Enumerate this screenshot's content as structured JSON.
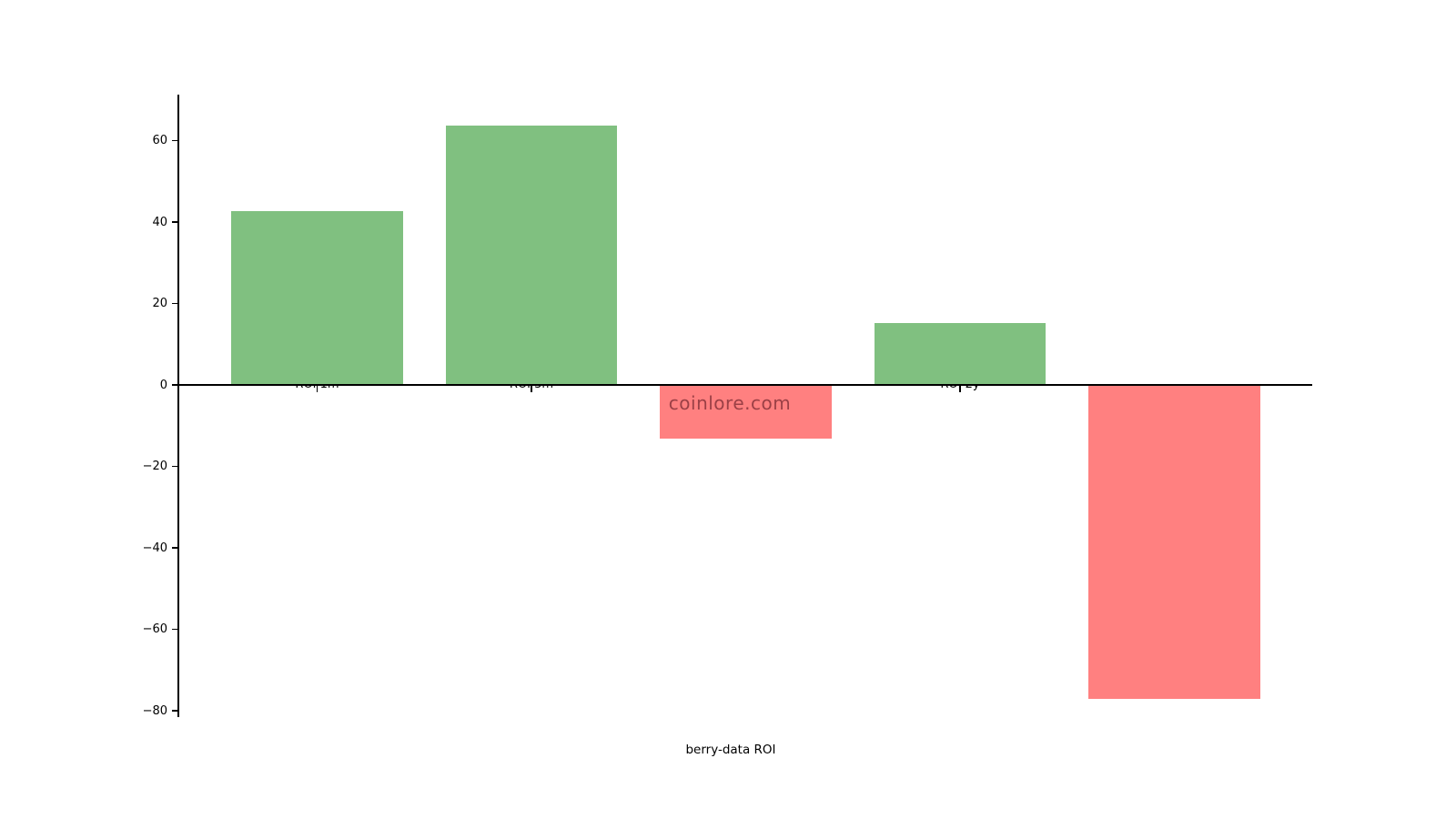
{
  "chart_data": {
    "type": "bar",
    "title": "",
    "xlabel": "berry-data ROI",
    "ylabel": "",
    "categories": [
      "ROI 1m",
      "ROI 3m",
      "",
      "ROI 2y",
      ""
    ],
    "values": [
      42.6,
      63.6,
      -13.1,
      15.2,
      -77.1
    ],
    "bar_colors": [
      "#80c080",
      "#80c080",
      "#ff8080",
      "#80c080",
      "#ff8080"
    ],
    "positive_color": "#80c080",
    "negative_color": "#ff8080",
    "yticks": [
      60,
      40,
      20,
      0,
      -20,
      -40,
      -60,
      -80
    ],
    "ytick_labels": [
      "60",
      "40",
      "20",
      "0",
      "−20",
      "−40",
      "−60",
      "−80"
    ],
    "ylim": [
      -81.6,
      71.1
    ],
    "baseline": 0,
    "grid": false,
    "legend": null,
    "axis_color": "#000000",
    "tick_label_color": "#000000",
    "note": "x tick labels of the two negative (red) bars are obscured by the bars themselves"
  },
  "watermark": {
    "text": "coinlore.com",
    "color": "#9b4046"
  }
}
